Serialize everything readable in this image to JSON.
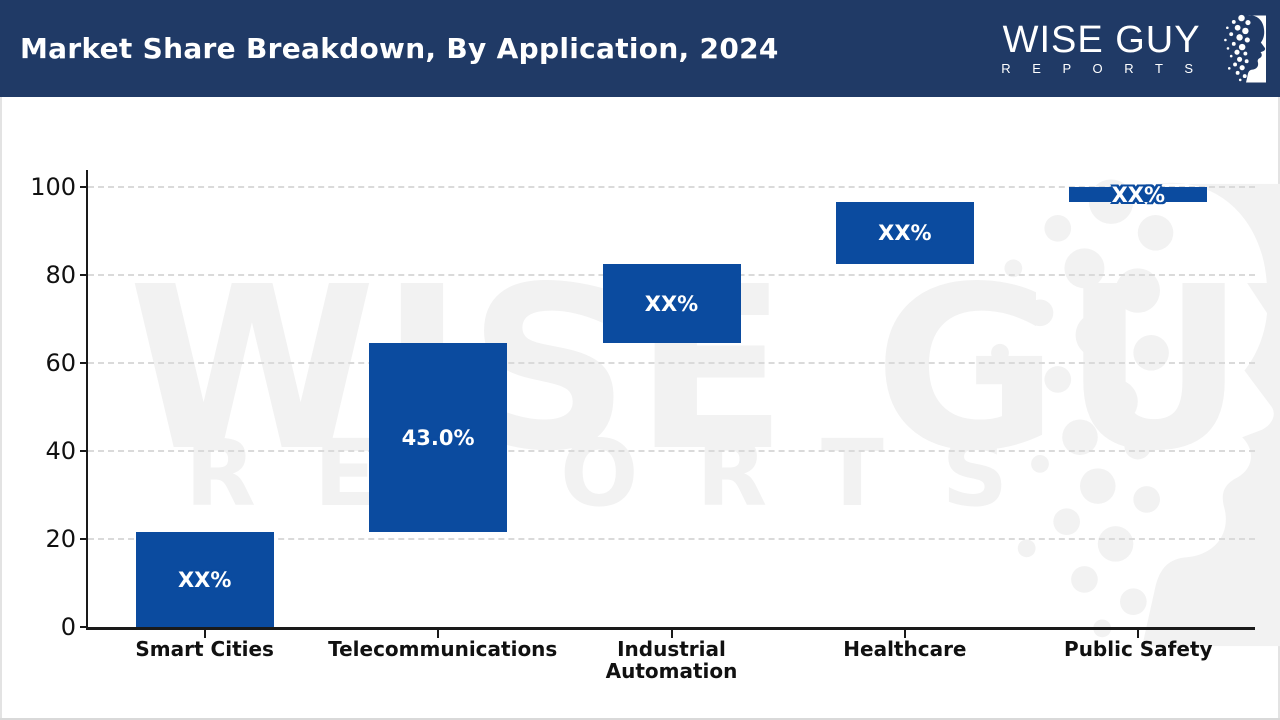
{
  "header": {
    "title": "Market Share Breakdown, By Application, 2024",
    "logo": {
      "line1": "WISE GUY",
      "line2": "R E P O R T S"
    }
  },
  "watermark": {
    "line1": "WISE GUY",
    "line2": "REPORTS"
  },
  "colors": {
    "header_bg": "#203a66",
    "bar_blue": "#0b4b9f",
    "bar_label_text": "#ffffff",
    "axis": "#1a1a1a",
    "gridline": "#dadada",
    "watermark": "#f2f2f2"
  },
  "chart_data": {
    "type": "bar",
    "subtype": "waterfall",
    "title": "Market Share Breakdown, By Application, 2024",
    "xlabel": "",
    "ylabel": "",
    "categories": [
      "Smart Cities",
      "Telecommunications",
      "Industrial\nAutomation",
      "Healthcare",
      "Public Safety"
    ],
    "segments": [
      {
        "category": "Smart Cities",
        "start": 0,
        "end": 21.5,
        "label": "XX%"
      },
      {
        "category": "Telecommunications",
        "start": 21.5,
        "end": 64.5,
        "label": "43.0%"
      },
      {
        "category": "Industrial Automation",
        "start": 64.5,
        "end": 82.5,
        "label": "XX%"
      },
      {
        "category": "Healthcare",
        "start": 82.5,
        "end": 96.5,
        "label": "XX%"
      },
      {
        "category": "Public Safety",
        "start": 96.5,
        "end": 100,
        "label": "XX%"
      }
    ],
    "y_ticks": [
      0,
      20,
      40,
      60,
      80,
      100
    ],
    "ylim": [
      0,
      104
    ],
    "grid": "horizontal-dashed",
    "legend": "none",
    "bar_color": "#0b4b9f"
  }
}
